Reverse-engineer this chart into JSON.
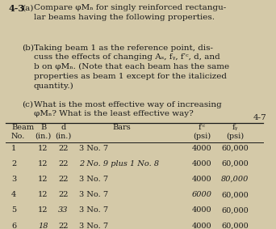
{
  "problem_number": "4-3",
  "side_number": "4-7",
  "background_color": "#d4c9a8",
  "text_color": "#1a1a1a",
  "fontsize_body": 7.5,
  "table_data": [
    [
      "1",
      "12",
      "22",
      "3 No. 7",
      "4000",
      "60,000"
    ],
    [
      "2",
      "12",
      "22",
      "2 No. 9 plus 1 No. 8",
      "4000",
      "60,000"
    ],
    [
      "3",
      "12",
      "22",
      "3 No. 7",
      "4000",
      "80,000"
    ],
    [
      "4",
      "12",
      "22",
      "3 No. 7",
      "6000",
      "60,000"
    ],
    [
      "5",
      "12",
      "33",
      "3 No. 7",
      "4000",
      "60,000"
    ],
    [
      "6",
      "18",
      "22",
      "3 No. 7",
      "4000",
      "60,000"
    ]
  ],
  "italic_map": {
    "1": [
      3
    ],
    "2": [
      5
    ],
    "3": [
      4
    ],
    "4": [
      2
    ],
    "5": [
      1
    ]
  }
}
